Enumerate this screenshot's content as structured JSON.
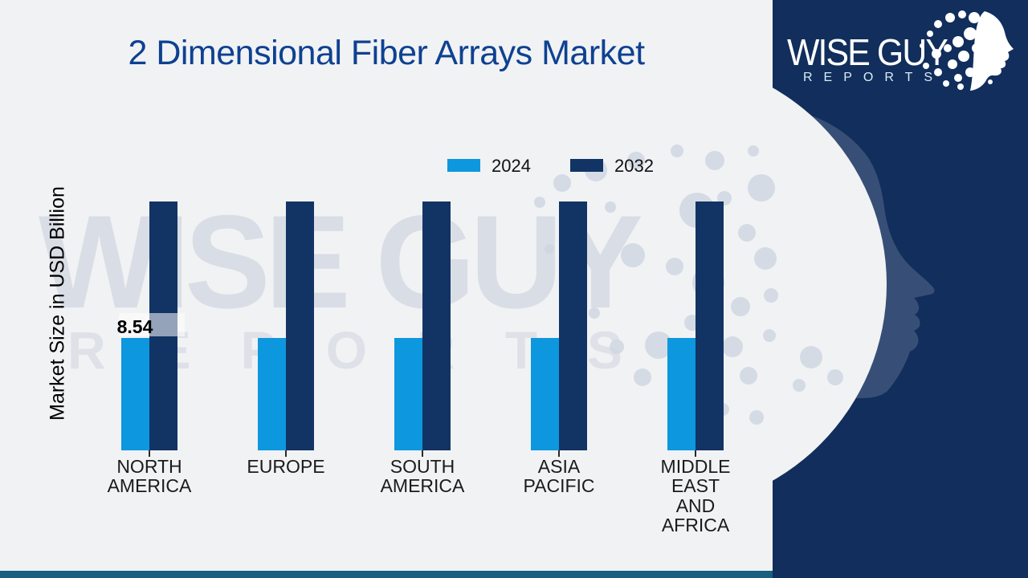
{
  "page": {
    "background_color": "#f1f2f4",
    "footer_bar_color": "#17607f",
    "brand_panel_color": "#112e5c"
  },
  "title": {
    "text": "2 Dimensional Fiber Arrays Market",
    "color": "#0e4191"
  },
  "y_axis": {
    "label": "Market Size in USD Billion"
  },
  "logo": {
    "line1": "WISE GUY",
    "line2": "REPORTS",
    "icon": "face-profile-dots-icon"
  },
  "watermark": {
    "line1": "WISE GUY",
    "line2": "REPORTS"
  },
  "chart_data": {
    "type": "bar",
    "title": "2 Dimensional Fiber Arrays Market",
    "xlabel": "",
    "ylabel": "Market Size in USD Billion",
    "categories": [
      "NORTH AMERICA",
      "EUROPE",
      "SOUTH AMERICA",
      "ASIA PACIFIC",
      "MIDDLE EAST AND AFRICA"
    ],
    "category_label_lines": [
      [
        "NORTH",
        "AMERICA"
      ],
      [
        "EUROPE"
      ],
      [
        "SOUTH",
        "AMERICA"
      ],
      [
        "ASIA",
        "PACIFIC"
      ],
      [
        "MIDDLE",
        "EAST",
        "AND",
        "AFRICA"
      ]
    ],
    "series": [
      {
        "name": "2024",
        "color": "#0d97de",
        "values": [
          8.54,
          8.54,
          8.54,
          8.54,
          8.54
        ]
      },
      {
        "name": "2032",
        "color": "#123465",
        "values": [
          18.9,
          18.9,
          18.9,
          18.9,
          18.9
        ],
        "note": "2032 values are not printed on the chart; estimated from equal bar heights"
      }
    ],
    "data_labels": [
      {
        "series": "2024",
        "category": "NORTH AMERICA",
        "value": "8.54"
      }
    ],
    "grid": false,
    "axis_lines": false,
    "legend_position": "top-right"
  }
}
